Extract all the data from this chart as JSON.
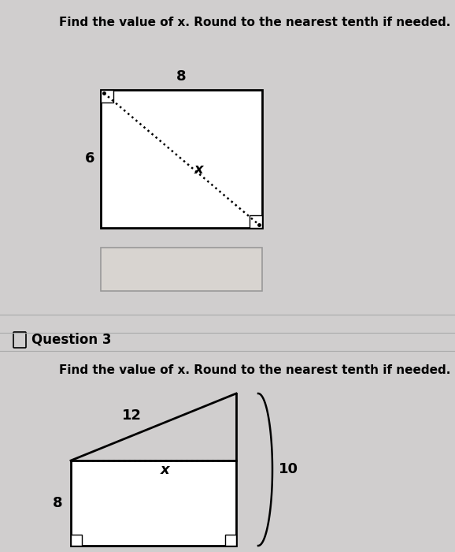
{
  "bg_color": "#d0cece",
  "panel1_bg": "#d0cece",
  "panel2_bg": "#d0cece",
  "title1": "Find the value of x. Round to the nearest tenth if needed.",
  "title2": "Find the value of x. Round to the nearest tenth if needed.",
  "q3_label": "Question 3",
  "label_8_top": "8",
  "label_6": "6",
  "label_x1": "x",
  "label_12": "12",
  "label_x2": "x",
  "label_8_left": "8",
  "label_10": "10",
  "title_fontsize": 11,
  "label_fontsize": 13
}
